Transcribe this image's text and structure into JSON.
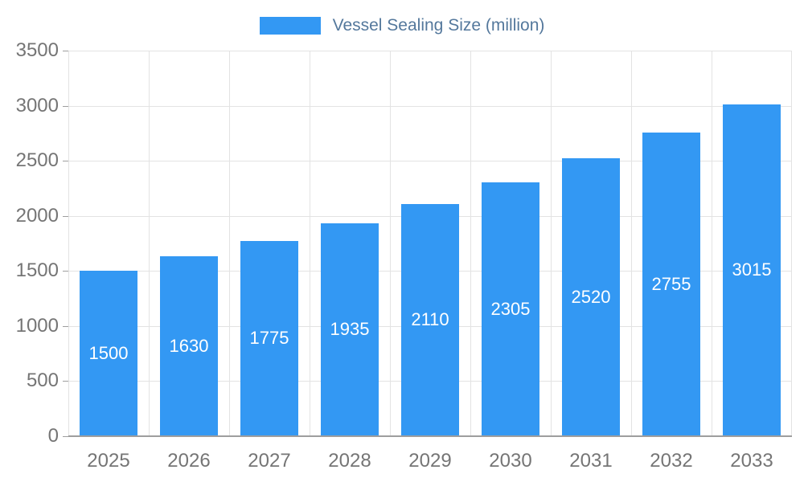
{
  "legend": {
    "label": "Vessel Sealing Size (million)"
  },
  "chart_data": {
    "type": "bar",
    "title": "",
    "legend": "Vessel Sealing Size (million)",
    "categories": [
      "2025",
      "2026",
      "2027",
      "2028",
      "2029",
      "2030",
      "2031",
      "2032",
      "2033"
    ],
    "values": [
      1500,
      1630,
      1775,
      1935,
      2110,
      2305,
      2520,
      2755,
      3015
    ],
    "series": [
      {
        "name": "Vessel Sealing Size (million)",
        "values": [
          1500,
          1630,
          1775,
          1935,
          2110,
          2305,
          2520,
          2755,
          3015
        ]
      }
    ],
    "xlabel": "",
    "ylabel": "",
    "ylim": [
      0,
      3500
    ],
    "ytick_step": 500,
    "yticks": [
      0,
      500,
      1000,
      1500,
      2000,
      2500,
      3000,
      3500
    ],
    "grid": true,
    "legend_position": "top-center",
    "bar_labels_inside": true,
    "colors": {
      "bar": "#3398f3",
      "bar_label": "#ffffff",
      "axis_text": "#757575",
      "legend_text": "#54789c",
      "gridline": "#e3e3e3",
      "axis_line": "#9e9e9e",
      "background": "#ffffff"
    }
  }
}
